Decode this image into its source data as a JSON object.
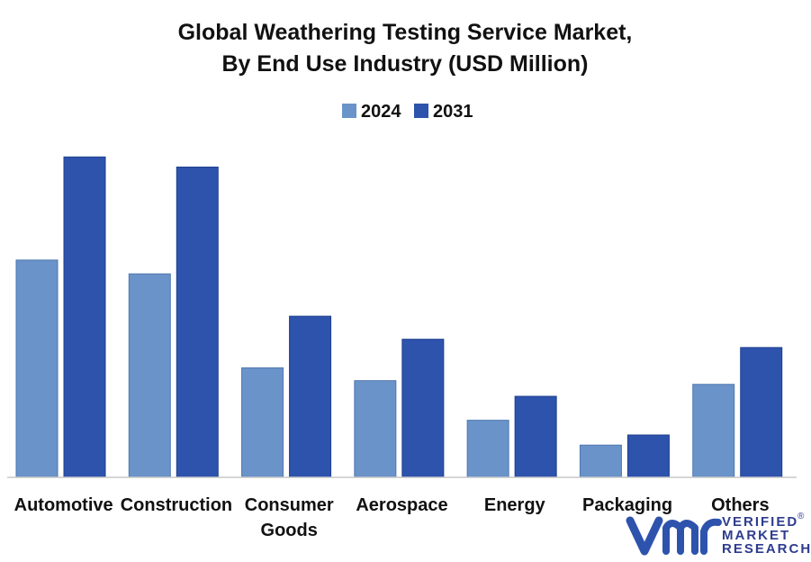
{
  "chart_data": {
    "type": "bar",
    "title_lines": [
      "Global Weathering Testing Service Market,",
      "By End Use Industry (USD Million)"
    ],
    "categories": [
      [
        "Automotive"
      ],
      [
        "Construction"
      ],
      [
        "Consumer",
        "Goods"
      ],
      [
        "Aerospace"
      ],
      [
        "Energy"
      ],
      [
        "Packaging"
      ],
      [
        "Others"
      ]
    ],
    "series": [
      {
        "name": "2024",
        "color": "#6a93c9",
        "values": [
          236,
          221,
          119,
          105,
          62,
          35,
          101
        ]
      },
      {
        "name": "2031",
        "color": "#2e53ad",
        "values": [
          348,
          337,
          175,
          150,
          88,
          46,
          141
        ]
      }
    ],
    "ylim": [
      0,
      360
    ],
    "grid": false,
    "legend_position": "top-center"
  },
  "logo": {
    "mark": "VMR",
    "lines": [
      "VERIFIED",
      "MARKET",
      "RESEARCH"
    ],
    "registered": "®"
  }
}
